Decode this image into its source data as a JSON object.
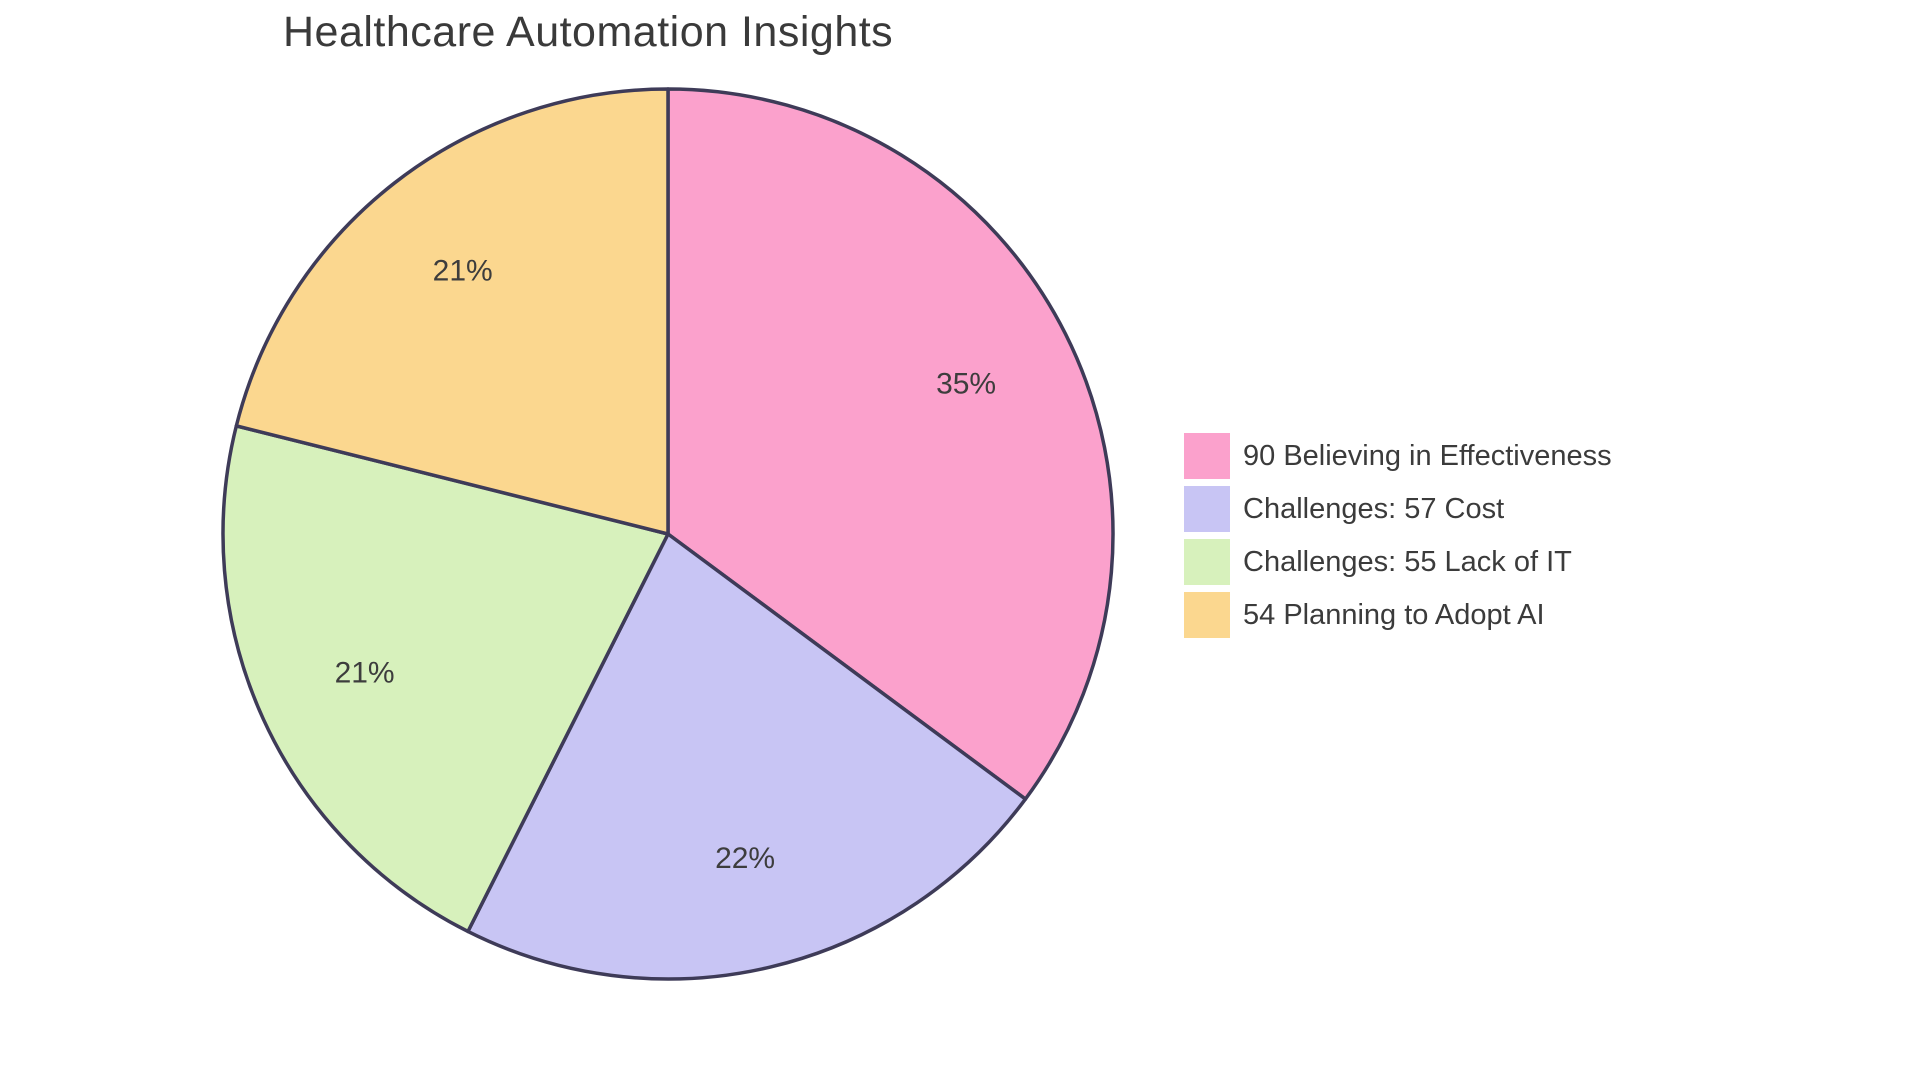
{
  "page": {
    "background_color": "#ffffff"
  },
  "chart_data": {
    "type": "pie",
    "title": "Healthcare Automation Insights",
    "title_color": "#3a3a3a",
    "legend_position": "right",
    "direction": "clockwise",
    "start_angle": "top",
    "stroke_color": "#3e3b58",
    "stroke_width": 3.5,
    "percent_label_color": "#3d3d3d",
    "total": 256,
    "slices": [
      {
        "label": "90 Believing in Effectiveness",
        "value": 90,
        "percent_label": "35%",
        "color": "#FBA1CC"
      },
      {
        "label": "Challenges: 57 Cost",
        "value": 57,
        "percent_label": "22%",
        "color": "#C8C5F4"
      },
      {
        "label": "Challenges: 55 Lack of IT",
        "value": 55,
        "percent_label": "21%",
        "color": "#D7F1BC"
      },
      {
        "label": "54 Planning to Adopt AI",
        "value": 54,
        "percent_label": "21%",
        "color": "#FBD78F"
      }
    ]
  }
}
